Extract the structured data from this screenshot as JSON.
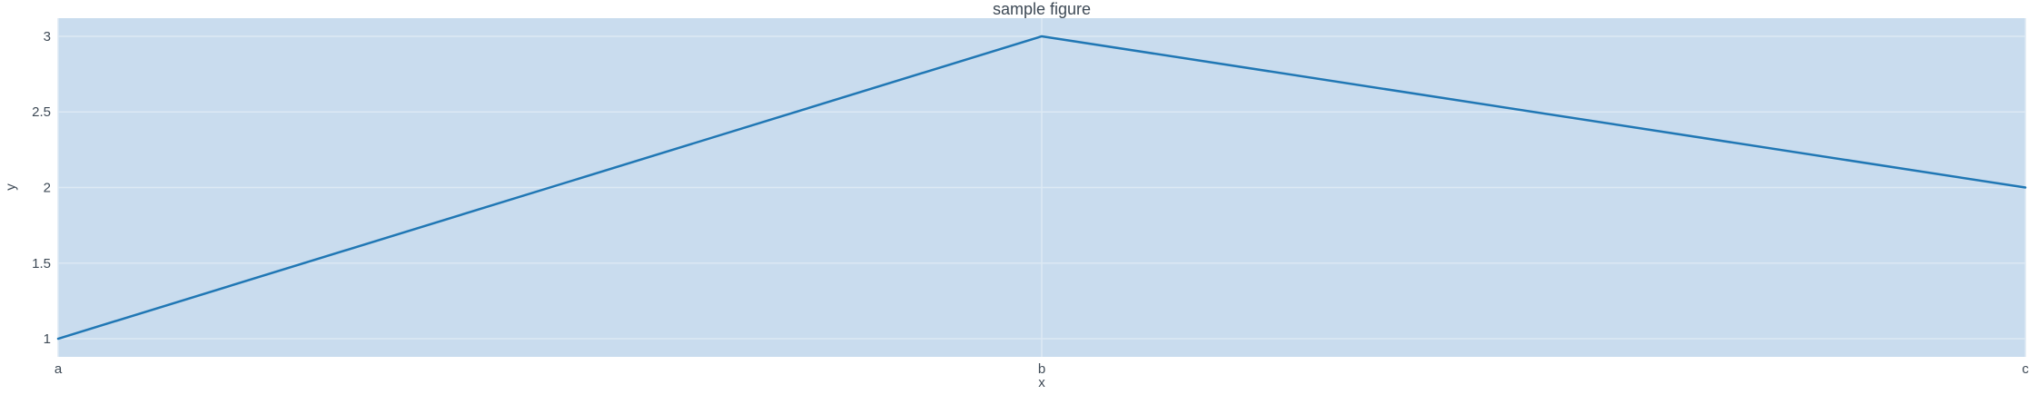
{
  "chart_data": {
    "type": "line",
    "title": "sample figure",
    "xlabel": "x",
    "ylabel": "y",
    "categories": [
      "a",
      "b",
      "c"
    ],
    "values": [
      1,
      3,
      2
    ],
    "yticks": [
      1,
      1.5,
      2,
      2.5,
      3
    ],
    "ytick_labels": [
      "1",
      "1.5",
      "2",
      "2.5",
      "3"
    ],
    "ylim": [
      0.88,
      3.12
    ],
    "grid": true,
    "legend": false,
    "colors": {
      "line": "#2077b4",
      "plot_background": "#c9dcee",
      "gridline": "#dde9f4",
      "text": "#3e4a56",
      "page_background": "#ffffff"
    }
  }
}
